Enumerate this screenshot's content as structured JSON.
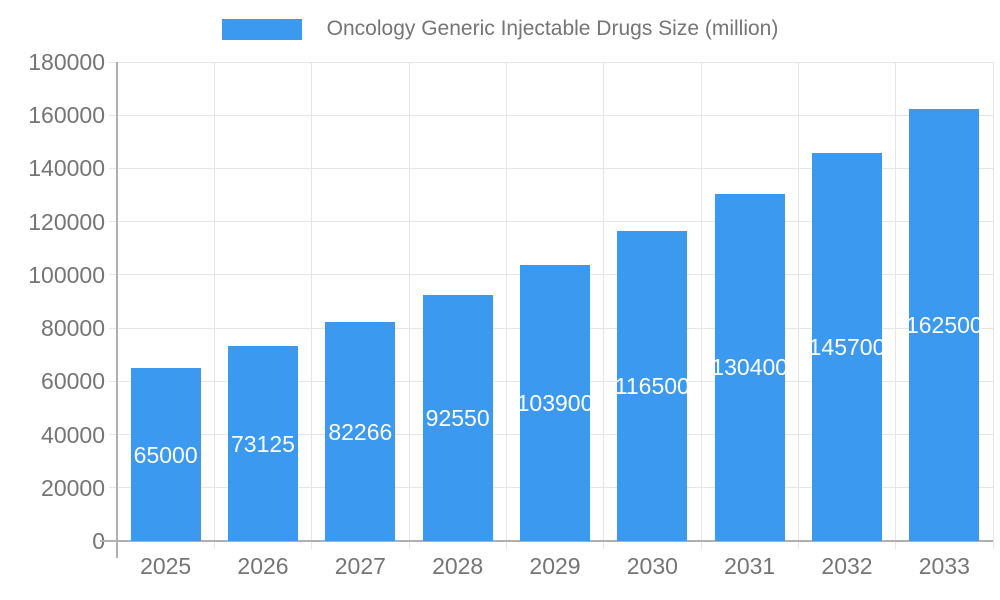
{
  "chart_data": {
    "type": "bar",
    "title": "Oncology Generic Injectable Drugs Size (million)",
    "categories": [
      "2025",
      "2026",
      "2027",
      "2028",
      "2029",
      "2030",
      "2031",
      "2032",
      "2033"
    ],
    "values": [
      65000,
      73125,
      82266,
      92550,
      103900,
      116500,
      130400,
      145700,
      162500
    ],
    "value_labels": [
      "65000",
      "73125",
      "82266",
      "92550",
      "103900",
      "116500",
      "130400",
      "145700",
      "162500"
    ],
    "xlabel": "",
    "ylabel": "",
    "ylim": [
      0,
      180000
    ],
    "ytick_step": 20000,
    "ytick_labels": [
      "0",
      "20000",
      "40000",
      "60000",
      "80000",
      "100000",
      "120000",
      "140000",
      "160000",
      "180000"
    ],
    "grid": true,
    "legend_position": "top-center",
    "colors": {
      "bar": "#3b99f0",
      "axis_text": "#757575",
      "grid_line": "#e6e6e6",
      "axis_line": "#b0b0b0",
      "value_label": "#ffffff",
      "background": "#ffffff"
    }
  }
}
